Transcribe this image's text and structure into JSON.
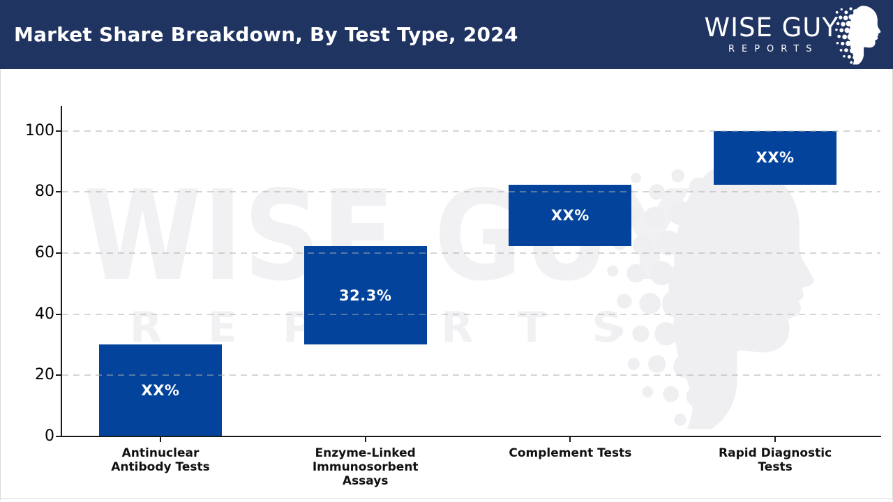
{
  "header": {
    "title": "Market Share Breakdown, By Test Type, 2024",
    "background": "#203462",
    "logo": {
      "wordmark": "WISE GUY",
      "subtext": "REPORTS"
    }
  },
  "watermark": {
    "line1": "WISE GUY",
    "line2": "REPORTS"
  },
  "chart_data": {
    "type": "bar",
    "subtype": "floating-waterfall",
    "title": "Market Share Breakdown, By Test Type, 2024",
    "categories": [
      "Antinuclear\nAntibody Tests",
      "Enzyme-Linked\nImmunosorbent\nAssays",
      "Complement Tests",
      "Rapid Diagnostic\nTests"
    ],
    "bars": [
      {
        "category": "Antinuclear Antibody Tests",
        "label": "XX%",
        "start": 0,
        "end": 30
      },
      {
        "category": "Enzyme-Linked Immunosorbent Assays",
        "label": "32.3%",
        "start": 30,
        "end": 62.3
      },
      {
        "category": "Complement Tests",
        "label": "XX%",
        "start": 62.3,
        "end": 82.3
      },
      {
        "category": "Rapid Diagnostic Tests",
        "label": "XX%",
        "start": 82.3,
        "end": 100
      }
    ],
    "yticks": [
      0,
      20,
      40,
      60,
      80,
      100
    ],
    "ylim": [
      0,
      108
    ],
    "xlabel": "",
    "ylabel": "",
    "grid": true,
    "legend_position": "none",
    "bar_color": "#04439c",
    "axis_color": "#1a1a1a",
    "gridline_color": "#d8d8d8"
  }
}
